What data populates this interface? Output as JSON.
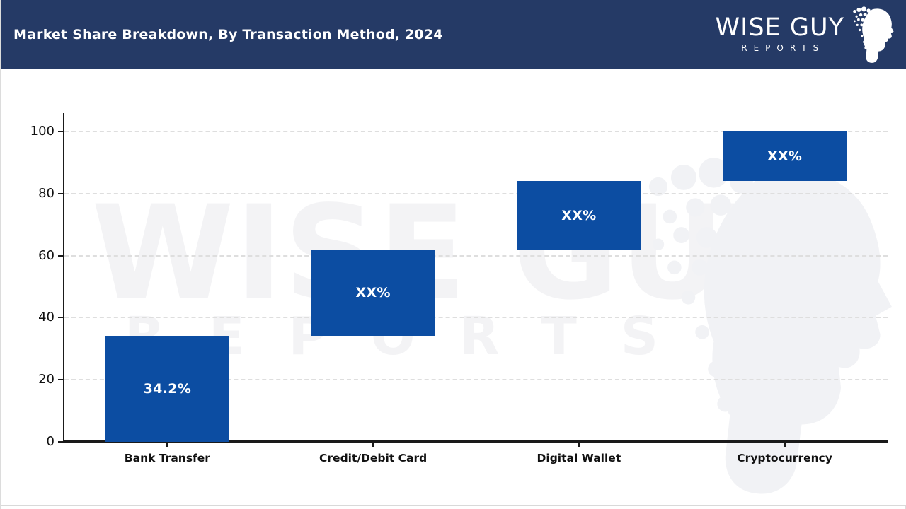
{
  "header": {
    "title": "Market Share Breakdown, By Transaction Method, 2024",
    "logo": {
      "line1": "WISE GUY",
      "line2": "REPORTS"
    }
  },
  "watermark": {
    "line1": "WISE GUY",
    "line2": "REPORTS"
  },
  "colors": {
    "header_bg": "#253A66",
    "bar_blue": "#0C4DA2",
    "grid": "#DEDEDE",
    "watermark_gray": "#F3F3F5",
    "axis_text": "#111111",
    "bar_label": "#FFFFFF"
  },
  "chart_data": {
    "type": "bar",
    "subtype": "stacked-waterfall",
    "title": "Market Share Breakdown, By Transaction Method, 2024",
    "categories": [
      "Bank Transfer",
      "Credit/Debit Card",
      "Digital Wallet",
      "Cryptocurrency"
    ],
    "bars": [
      {
        "category": "Bank Transfer",
        "label": "34.2%",
        "start": 0,
        "end": 34.2
      },
      {
        "category": "Credit/Debit Card",
        "label": "XX%",
        "start": 34.2,
        "end": 62
      },
      {
        "category": "Digital Wallet",
        "label": "XX%",
        "start": 62,
        "end": 84
      },
      {
        "category": "Cryptocurrency",
        "label": "XX%",
        "start": 84,
        "end": 100
      }
    ],
    "yticks": [
      0,
      20,
      40,
      60,
      80,
      100
    ],
    "ylim": [
      0,
      100
    ],
    "xlabel": "",
    "ylabel": "",
    "grid": "horizontal-dashed",
    "legend": "none"
  }
}
